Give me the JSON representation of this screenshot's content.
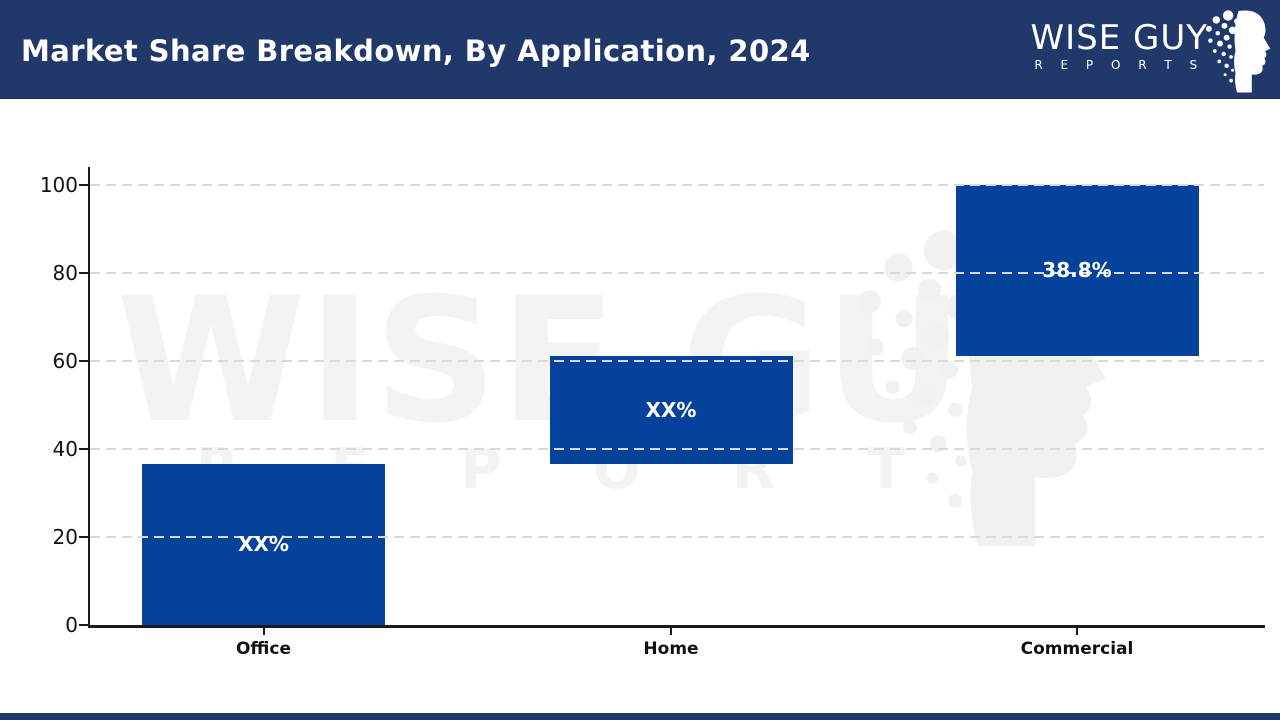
{
  "header": {
    "title": "Market Share Breakdown, By Application, 2024",
    "logo_line1": "WISE GUY",
    "logo_line2": "R E P O R T S",
    "bg_color": "#21386B"
  },
  "watermark": {
    "line1": "WISE GUY",
    "line2": "R E P O R T S"
  },
  "chart_data": {
    "type": "bar",
    "subtype": "waterfall",
    "title": "Market Share Breakdown, By Application, 2024",
    "categories": [
      "Office",
      "Home",
      "Commercial"
    ],
    "segments": [
      {
        "category": "Office",
        "start": 0,
        "end": 36.6,
        "label": "XX%"
      },
      {
        "category": "Home",
        "start": 36.6,
        "end": 61.2,
        "label": "XX%"
      },
      {
        "category": "Commercial",
        "start": 61.2,
        "end": 100,
        "label": "38.8%"
      }
    ],
    "yticks": [
      0,
      20,
      40,
      60,
      80,
      100
    ],
    "ylim": [
      0,
      100
    ],
    "xlabel": "",
    "ylabel": "",
    "legend": "none",
    "grid": "horizontal-dashed-over-bars",
    "bar_color": "#05429B",
    "bar_label_color": "#FFFFFF",
    "gridline_color": "#D9D9D9",
    "axis_color": "#1A1A1A"
  },
  "footer": {
    "bg_color": "#21386B"
  }
}
